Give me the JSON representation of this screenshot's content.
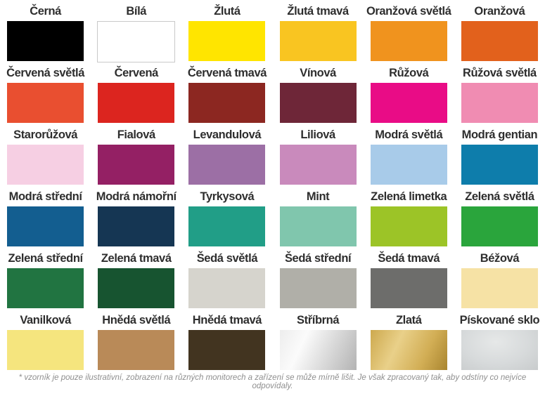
{
  "chart_data": {
    "type": "table",
    "title": "Vzorník barev (color sample chart)",
    "columns": 6,
    "rows": [
      {
        "cells": [
          {
            "label": "Černá",
            "hex": "#000000",
            "style": "background:#000000"
          },
          {
            "label": "Bílá",
            "hex": "#ffffff",
            "style": "background:#ffffff;border:1px solid #c9c9c9"
          },
          {
            "label": "Žlutá",
            "hex": "#ffe500",
            "style": "background:#ffe500"
          },
          {
            "label": "Žlutá tmavá",
            "hex": "#f9c521",
            "style": "background:#f9c521"
          },
          {
            "label": "Oranžová světlá",
            "hex": "#f0931e",
            "style": "background:#f0931e"
          },
          {
            "label": "Oranžová",
            "hex": "#e2611c",
            "style": "background:#e2611c"
          }
        ]
      },
      {
        "cells": [
          {
            "label": "Červená světlá",
            "hex": "#e94f30",
            "style": "background:#e94f30"
          },
          {
            "label": "Červená",
            "hex": "#dc251f",
            "style": "background:#dc251f"
          },
          {
            "label": "Červená tmavá",
            "hex": "#8c2721",
            "style": "background:#8c2721"
          },
          {
            "label": "Vínová",
            "hex": "#6e2638",
            "style": "background:#6e2638"
          },
          {
            "label": "Růžová",
            "hex": "#e90c86",
            "style": "background:#e90c86"
          },
          {
            "label": "Růžová světlá",
            "hex": "#f08cb2",
            "style": "background:#f08cb2"
          }
        ]
      },
      {
        "cells": [
          {
            "label": "Starorůžová",
            "hex": "#f6cfe3",
            "style": "background:#f6cfe3"
          },
          {
            "label": "Fialová",
            "hex": "#942064",
            "style": "background:#942064"
          },
          {
            "label": "Levandulová",
            "hex": "#9c6fa5",
            "style": "background:#9c6fa5"
          },
          {
            "label": "Liliová",
            "hex": "#c98abc",
            "style": "background:#c98abc"
          },
          {
            "label": "Modrá světlá",
            "hex": "#a8cbe9",
            "style": "background:#a8cbe9"
          },
          {
            "label": "Modrá gentian",
            "hex": "#0e7dab",
            "style": "background:#0e7dab"
          }
        ]
      },
      {
        "cells": [
          {
            "label": "Modrá střední",
            "hex": "#135e90",
            "style": "background:#135e90"
          },
          {
            "label": "Modrá námořní",
            "hex": "#153653",
            "style": "background:#153653"
          },
          {
            "label": "Tyrkysová",
            "hex": "#219e87",
            "style": "background:#219e87"
          },
          {
            "label": "Mint",
            "hex": "#80c6ad",
            "style": "background:#80c6ad"
          },
          {
            "label": "Zelená limetka",
            "hex": "#9cc427",
            "style": "background:#9cc427"
          },
          {
            "label": "Zelená světlá",
            "hex": "#2aa53c",
            "style": "background:#2aa53c"
          }
        ]
      },
      {
        "cells": [
          {
            "label": "Zelená střední",
            "hex": "#217441",
            "style": "background:#217441"
          },
          {
            "label": "Zelená tmavá",
            "hex": "#175430",
            "style": "background:#175430"
          },
          {
            "label": "Šedá světlá",
            "hex": "#d6d4cd",
            "style": "background:#d6d4cd"
          },
          {
            "label": "Šedá střední",
            "hex": "#b0afa8",
            "style": "background:#b0afa8"
          },
          {
            "label": "Šedá tmavá",
            "hex": "#6d6d6b",
            "style": "background:#6d6d6b"
          },
          {
            "label": "Béžová",
            "hex": "#f6e2a5",
            "style": "background:#f6e2a5"
          }
        ]
      },
      {
        "cells": [
          {
            "label": "Vanilková",
            "hex": "#f5e57e",
            "style": "background:#f5e57e"
          },
          {
            "label": "Hnědá světlá",
            "hex": "#b98a58",
            "style": "background:#b98a58"
          },
          {
            "label": "Hnědá tmavá",
            "hex": "#423420",
            "style": "background:#423420"
          },
          {
            "label": "Stříbrná",
            "hex": "#c6c6c6",
            "style": "background:linear-gradient(115deg,#ededed 0%,#fbfbfb 30%,#d2d2d2 70%,#b3b3b3 100%)"
          },
          {
            "label": "Zlatá",
            "hex": "#c9a846",
            "style": "background:linear-gradient(115deg,#cda94e 0%,#e9d089 35%,#d2ae55 70%,#a9852f 100%)"
          },
          {
            "label": "Pískované sklo",
            "hex": "#d4d7d8",
            "style": "background:radial-gradient(ellipse at 45% 30%,#e6e8e8 0%,#d7dadb 55%,#c8cbcc 100%)"
          }
        ]
      }
    ]
  },
  "footnote": {
    "text": "* vzorník je pouze ilustrativní, zobrazení na různých monitorech a zařízení se může mírně lišit. Je však zpracovaný tak, aby odstíny co nejvíce odpovídaly."
  }
}
